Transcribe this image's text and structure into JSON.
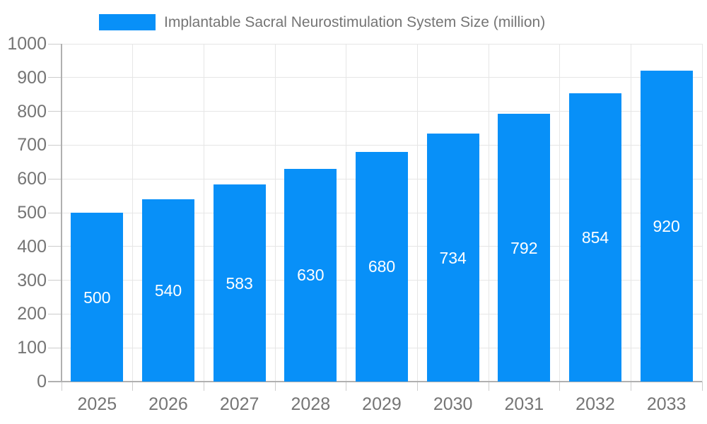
{
  "legend": {
    "label": "Implantable Sacral Neurostimulation System Size (million)"
  },
  "chart_data": {
    "type": "bar",
    "title": "Implantable Sacral Neurostimulation System Size (million)",
    "categories": [
      "2025",
      "2026",
      "2027",
      "2028",
      "2029",
      "2030",
      "2031",
      "2032",
      "2033"
    ],
    "values": [
      500,
      540,
      583,
      630,
      680,
      734,
      792,
      854,
      920
    ],
    "xlabel": "",
    "ylabel": "",
    "ylim": [
      0,
      1000
    ],
    "ytick_step": 100,
    "ytick_labels": [
      "0",
      "100",
      "200",
      "300",
      "400",
      "500",
      "600",
      "700",
      "800",
      "900",
      "1000"
    ],
    "grid": true,
    "legend_position": "top",
    "bar_labels_inside": true
  },
  "colors": {
    "bar": "#0890F8",
    "bar_value_label": "#ffffff",
    "axis_line": "#b0b0b0",
    "grid_line": "#e6e6e6",
    "tick": "#cccccc",
    "axis_label": "#757575",
    "legend_text": "#757575",
    "background": "#ffffff"
  }
}
